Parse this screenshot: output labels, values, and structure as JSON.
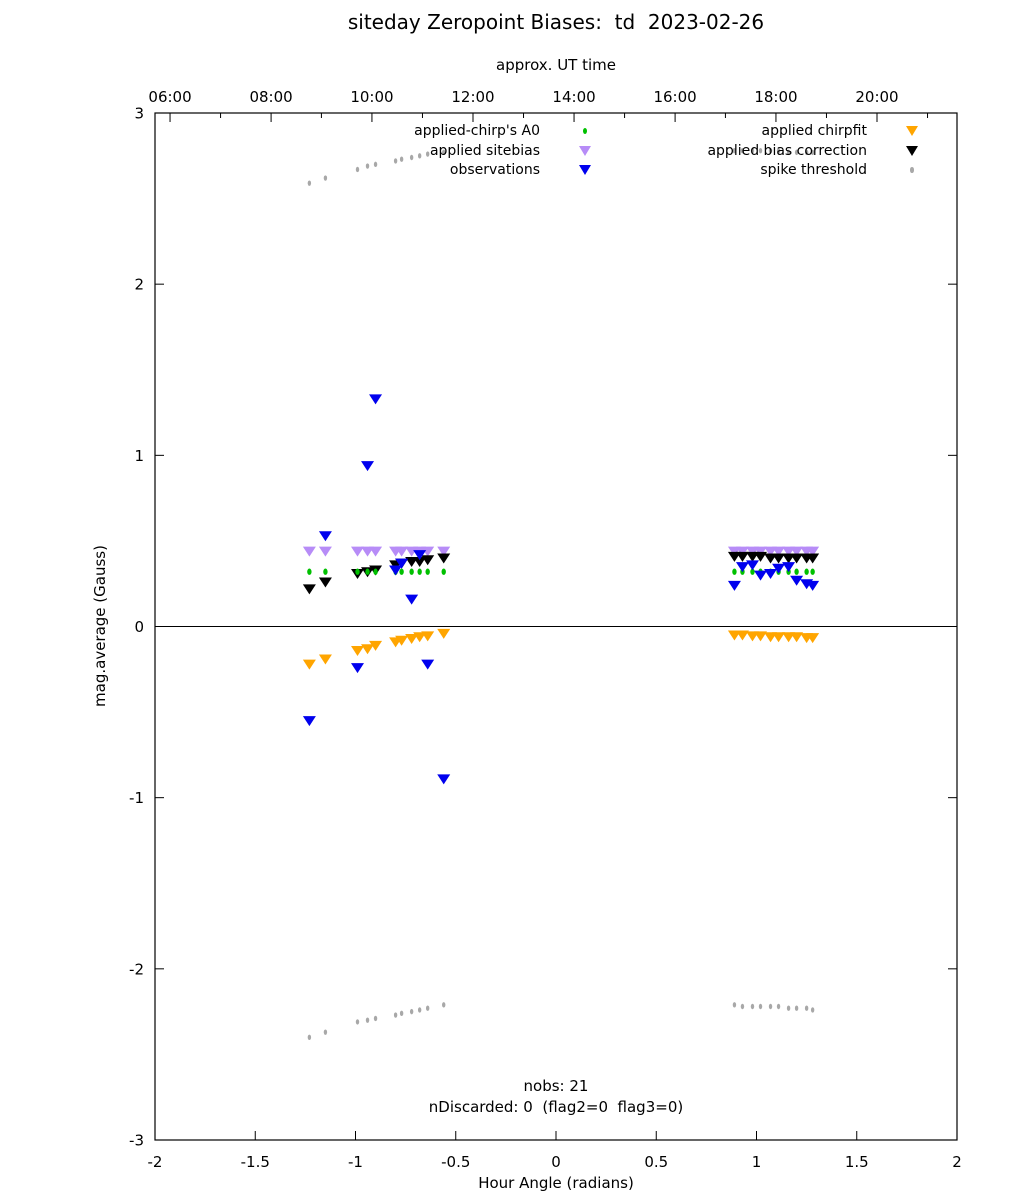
{
  "title": "siteday Zeropoint Biases:  td  2023-02-26",
  "annotations": {
    "nobs": "nobs: 21",
    "ndiscarded": "nDiscarded: 0  (flag2=0  flag3=0)"
  },
  "legend": {
    "columns": [
      {
        "entries": [
          {
            "label": "applied-chirp's A0",
            "marker": "dot",
            "color": "#00c000"
          },
          {
            "label": "applied sitebias",
            "marker": "triangle",
            "color": "#b78cf7"
          },
          {
            "label": "observations",
            "marker": "triangle",
            "color": "#0000ee"
          }
        ]
      },
      {
        "entries": [
          {
            "label": "applied chirpfit",
            "marker": "triangle",
            "color": "#ffa500"
          },
          {
            "label": "applied bias correction",
            "marker": "triangle",
            "color": "#000000"
          },
          {
            "label": "spike threshold",
            "marker": "dot-small",
            "color": "#a8a8a8"
          }
        ]
      }
    ]
  },
  "chart_data": {
    "type": "scatter",
    "title": "siteday Zeropoint Biases:  td  2023-02-26",
    "xlabel": "Hour Angle (radians)",
    "x2label": "approx. UT time",
    "ylabel": "mag.average (Gauss)",
    "xlim": [
      -2,
      2
    ],
    "ylim": [
      -3,
      3
    ],
    "grid": false,
    "zero_line": true,
    "x_ticks": [
      -2,
      -1.5,
      -1,
      -0.5,
      0,
      0.5,
      1,
      1.5,
      2
    ],
    "y_ticks": [
      -3,
      -2,
      -1,
      0,
      1,
      2,
      3
    ],
    "ut_ticks": [
      {
        "pos": -1.925,
        "label": "06:00"
      },
      {
        "pos": -1.421,
        "label": "08:00"
      },
      {
        "pos": -0.918,
        "label": "10:00"
      },
      {
        "pos": -0.414,
        "label": "12:00"
      },
      {
        "pos": 0.09,
        "label": "14:00"
      },
      {
        "pos": 0.594,
        "label": "16:00"
      },
      {
        "pos": 1.097,
        "label": "18:00"
      },
      {
        "pos": 1.601,
        "label": "20:00"
      }
    ],
    "ut_minor_ticks": [
      -1.673,
      -1.17,
      -0.666,
      -0.162,
      0.342,
      0.845,
      1.349,
      1.853
    ],
    "series": [
      {
        "name": "spike threshold",
        "marker": "dot-small",
        "color": "#a8a8a8",
        "x": [
          -1.23,
          -1.15,
          -0.99,
          -0.94,
          -0.9,
          -0.8,
          -0.77,
          -0.72,
          -0.68,
          -0.64,
          -0.56,
          0.89,
          0.93,
          0.98,
          1.02,
          1.07,
          1.11,
          1.16,
          1.2,
          1.25,
          1.28,
          -1.23,
          -1.15,
          -0.99,
          -0.94,
          -0.9,
          -0.8,
          -0.77,
          -0.72,
          -0.68,
          -0.64,
          -0.56,
          0.89,
          0.93,
          0.98,
          1.02,
          1.07,
          1.11,
          1.16,
          1.2,
          1.25,
          1.28
        ],
        "y": [
          2.59,
          2.62,
          2.67,
          2.69,
          2.7,
          2.72,
          2.73,
          2.74,
          2.75,
          2.76,
          2.77,
          2.78,
          2.78,
          2.78,
          2.78,
          2.78,
          2.78,
          2.77,
          2.77,
          2.77,
          2.77,
          -2.4,
          -2.37,
          -2.31,
          -2.3,
          -2.29,
          -2.27,
          -2.26,
          -2.25,
          -2.24,
          -2.23,
          -2.21,
          -2.21,
          -2.22,
          -2.22,
          -2.22,
          -2.22,
          -2.22,
          -2.23,
          -2.23,
          -2.23,
          -2.24
        ]
      },
      {
        "name": "applied sitebias",
        "marker": "triangle",
        "color": "#b78cf7",
        "x": [
          -1.23,
          -1.15,
          -0.99,
          -0.94,
          -0.9,
          -0.8,
          -0.77,
          -0.72,
          -0.68,
          -0.64,
          -0.56,
          0.89,
          0.93,
          0.98,
          1.02,
          1.07,
          1.11,
          1.16,
          1.2,
          1.25,
          1.28
        ],
        "y": [
          0.44,
          0.44,
          0.44,
          0.44,
          0.44,
          0.44,
          0.44,
          0.44,
          0.44,
          0.44,
          0.44,
          0.44,
          0.44,
          0.44,
          0.44,
          0.44,
          0.44,
          0.44,
          0.44,
          0.44,
          0.44
        ]
      },
      {
        "name": "applied chirpfit",
        "marker": "triangle",
        "color": "#ffa500",
        "x": [
          -1.23,
          -1.15,
          -0.99,
          -0.94,
          -0.9,
          -0.8,
          -0.77,
          -0.72,
          -0.68,
          -0.64,
          -0.56,
          0.89,
          0.93,
          0.98,
          1.02,
          1.07,
          1.11,
          1.16,
          1.2,
          1.25,
          1.28
        ],
        "y": [
          -0.22,
          -0.19,
          -0.14,
          -0.13,
          -0.11,
          -0.09,
          -0.08,
          -0.07,
          -0.06,
          -0.055,
          -0.04,
          -0.05,
          -0.05,
          -0.055,
          -0.055,
          -0.06,
          -0.06,
          -0.06,
          -0.06,
          -0.065,
          -0.065
        ]
      },
      {
        "name": "applied bias correction",
        "marker": "triangle",
        "color": "#000000",
        "x": [
          -1.23,
          -1.15,
          -0.99,
          -0.94,
          -0.9,
          -0.8,
          -0.77,
          -0.72,
          -0.68,
          -0.64,
          -0.56,
          0.89,
          0.93,
          0.98,
          1.02,
          1.07,
          1.11,
          1.16,
          1.2,
          1.25,
          1.28
        ],
        "y": [
          0.22,
          0.26,
          0.31,
          0.32,
          0.33,
          0.36,
          0.37,
          0.38,
          0.38,
          0.39,
          0.4,
          0.41,
          0.41,
          0.41,
          0.41,
          0.4,
          0.4,
          0.4,
          0.4,
          0.4,
          0.4
        ]
      },
      {
        "name": "applied-chirp's A0",
        "marker": "dot",
        "color": "#00c000",
        "x": [
          -1.23,
          -1.15,
          -0.99,
          -0.94,
          -0.9,
          -0.8,
          -0.77,
          -0.72,
          -0.68,
          -0.64,
          -0.56,
          0.89,
          0.93,
          0.98,
          1.02,
          1.07,
          1.11,
          1.16,
          1.2,
          1.25,
          1.28
        ],
        "y": [
          0.32,
          0.32,
          0.32,
          0.32,
          0.32,
          0.32,
          0.32,
          0.32,
          0.32,
          0.32,
          0.32,
          0.32,
          0.32,
          0.32,
          0.32,
          0.32,
          0.32,
          0.32,
          0.32,
          0.32,
          0.32
        ]
      },
      {
        "name": "observations",
        "marker": "triangle",
        "color": "#0000ee",
        "x": [
          -1.23,
          -1.15,
          -0.99,
          -0.94,
          -0.9,
          -0.8,
          -0.77,
          -0.72,
          -0.68,
          -0.64,
          -0.56,
          0.89,
          0.93,
          0.98,
          1.02,
          1.07,
          1.11,
          1.16,
          1.2,
          1.25,
          1.28
        ],
        "y": [
          -0.55,
          0.53,
          -0.24,
          0.94,
          1.33,
          0.33,
          0.37,
          0.16,
          0.42,
          -0.22,
          -0.89,
          0.24,
          0.35,
          0.36,
          0.3,
          0.31,
          0.34,
          0.35,
          0.27,
          0.25,
          0.24
        ]
      }
    ],
    "annotations": [
      "nobs: 21",
      "nDiscarded: 0  (flag2=0  flag3=0)"
    ]
  }
}
